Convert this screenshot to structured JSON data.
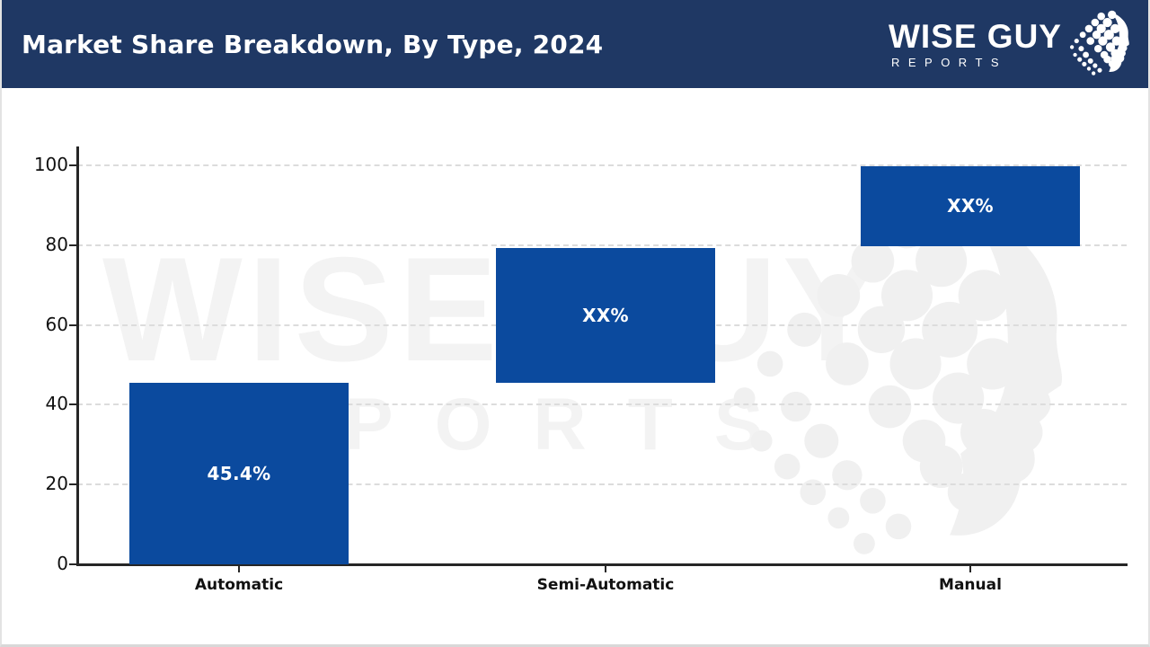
{
  "header": {
    "title": "Market Share Breakdown, By Type, 2024",
    "bg_color": "#1F3864",
    "logo": {
      "line1": "WISE GUY",
      "line2": "REPORTS"
    }
  },
  "watermark": {
    "line1": "WISE GUY",
    "line2": "REPORTS"
  },
  "chart_data": {
    "type": "bar",
    "subtype": "stacked-waterfall",
    "title": "Market Share Breakdown, By Type, 2024",
    "categories": [
      "Automatic",
      "Semi-Automatic",
      "Manual"
    ],
    "segments": [
      {
        "category": "Automatic",
        "start": 0,
        "end": 45.4,
        "label": "45.4%"
      },
      {
        "category": "Semi-Automatic",
        "start": 45.4,
        "end": 79.2,
        "label": "XX%"
      },
      {
        "category": "Manual",
        "start": 79.7,
        "end": 99.8,
        "label": "XX%"
      }
    ],
    "ylim": [
      0,
      100
    ],
    "yticks": [
      0,
      20,
      40,
      60,
      80,
      100
    ],
    "xlabel": "",
    "ylabel": "",
    "grid": "horizontal-dashed",
    "legend": "none",
    "bar_color": "#0B4A9E",
    "bar_label_color": "#FFFFFF",
    "axis_color": "#262626",
    "gridline_color": "#DCDCDC"
  }
}
